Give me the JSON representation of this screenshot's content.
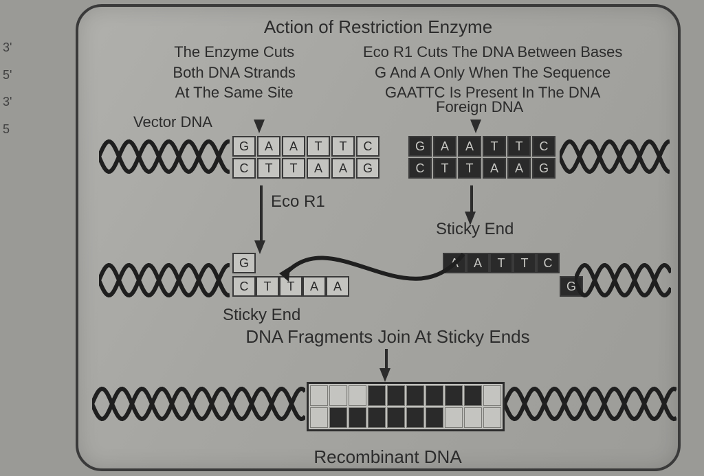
{
  "ruler": [
    "3'",
    "5'",
    "3'",
    "5"
  ],
  "title": "Action of Restriction Enzyme",
  "subhead": {
    "left": [
      "The Enzyme Cuts",
      "Both DNA Strands",
      "At The Same Site"
    ],
    "right": [
      "Eco R1 Cuts The DNA Between Bases",
      "G And A Only When The Sequence",
      "GAATTC Is Present In The DNA"
    ]
  },
  "labels": {
    "vector_dna": "Vector DNA",
    "foreign_dna": "Foreign DNA",
    "eco_r1": "Eco R1",
    "sticky_end": "Sticky End",
    "fragments_join": "DNA Fragments Join At Sticky Ends",
    "recombinant": "Recombinant DNA"
  },
  "sequence": {
    "top": [
      "G",
      "A",
      "A",
      "T",
      "T",
      "C"
    ],
    "bottom": [
      "C",
      "T",
      "T",
      "A",
      "A",
      "G"
    ]
  },
  "sticky_left": {
    "overhang_top": [
      "G"
    ],
    "row_bottom": [
      "C",
      "T",
      "T",
      "A",
      "A"
    ]
  },
  "sticky_right": {
    "row_top": [
      "A",
      "A",
      "T",
      "T",
      "C"
    ],
    "overhang_bottom": [
      "G"
    ]
  },
  "recombinant_pattern": [
    [
      0,
      0,
      0,
      1,
      1,
      1,
      1,
      1,
      1,
      0
    ],
    [
      0,
      1,
      1,
      1,
      1,
      1,
      1,
      0,
      0,
      0
    ]
  ],
  "colors": {
    "panel_border": "#3a3a3a",
    "background": "#9a9a96",
    "text": "#2c2c2c",
    "cell_light": "#c4c4c0",
    "cell_dark": "#2a2a2a",
    "helix_stroke": "#1f1f1f"
  },
  "helix": {
    "stroke_width": 6,
    "period": 58,
    "amplitude": 22
  }
}
